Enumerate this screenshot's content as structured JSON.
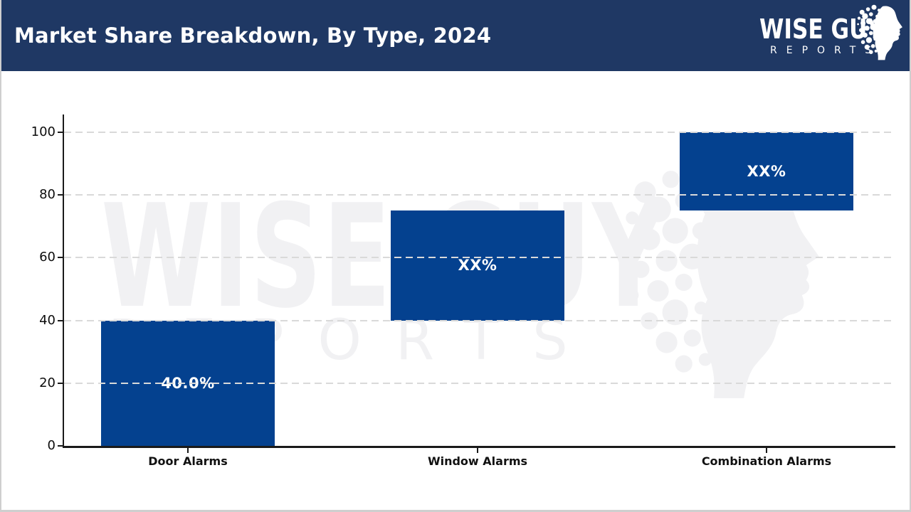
{
  "header": {
    "title": "Market Share Breakdown, By Type, 2024",
    "logo": {
      "line1": "WISE GUY",
      "line2": "REPORTS"
    }
  },
  "watermark": {
    "line1": "WISE GUY",
    "line2": "REPORTS"
  },
  "icons": {
    "logo_face": "dotted-head-profile",
    "watermark_face": "dotted-head-profile"
  },
  "colors": {
    "header_bg": "#1F3864",
    "bar_fill": "#04418F",
    "bar_label": "#ffffff",
    "grid": "#d9d9d9",
    "axis": "#1a1a1a",
    "watermark": "#f1f1f3",
    "page_bg": "#ffffff",
    "frame_border": "#cfcfcf"
  },
  "chart_data": {
    "type": "bar",
    "subtype": "floating-waterfall-segments",
    "title": "Market Share Breakdown, By Type, 2024",
    "categories": [
      "Door Alarms",
      "Window Alarms",
      "Combination Alarms"
    ],
    "segments": [
      {
        "category": "Door Alarms",
        "start": 0,
        "end": 40,
        "label": "40.0%"
      },
      {
        "category": "Window Alarms",
        "start": 40,
        "end": 75,
        "label": "XX%"
      },
      {
        "category": "Combination Alarms",
        "start": 75,
        "end": 100,
        "label": "XX%"
      }
    ],
    "xlabel": "",
    "ylabel": "",
    "ylim": [
      0,
      100
    ],
    "yticks": [
      0,
      20,
      40,
      60,
      80,
      100
    ],
    "grid": "horizontal-dashed",
    "legend": "none",
    "bar_color": "#04418F",
    "bar_label_color": "#ffffff"
  }
}
